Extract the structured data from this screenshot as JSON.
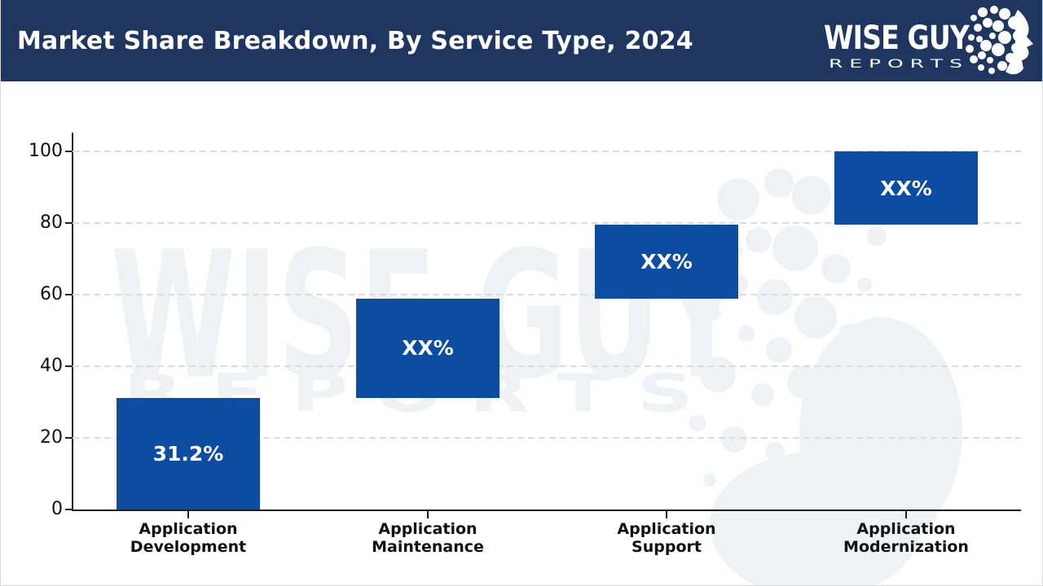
{
  "header": {
    "title": "Market Share Breakdown, By Service Type, 2024",
    "logo": {
      "name": "WISE GUY",
      "sub": "R E P O R T S"
    }
  },
  "watermark": {
    "line1": "WISE GUY",
    "line2": "R E P O R T S"
  },
  "chart_data": {
    "type": "bar",
    "subtype": "floating-waterfall",
    "title": "Market Share Breakdown, By Service Type, 2024",
    "categories": [
      {
        "line1": "Application",
        "line2": "Development"
      },
      {
        "line1": "Application",
        "line2": "Maintenance"
      },
      {
        "line1": "Application",
        "line2": "Support"
      },
      {
        "line1": "Application",
        "line2": "Modernization"
      }
    ],
    "segments": [
      {
        "category": "Application Development",
        "start": 0,
        "end": 31.2,
        "label": "31.2%"
      },
      {
        "category": "Application Maintenance",
        "start": 31.2,
        "end": 59,
        "label": "XX%"
      },
      {
        "category": "Application Support",
        "start": 59,
        "end": 79.6,
        "label": "XX%"
      },
      {
        "category": "Application Modernization",
        "start": 79.6,
        "end": 100,
        "label": "XX%"
      }
    ],
    "xlabel": "",
    "ylabel": "",
    "ylim": [
      0,
      100
    ],
    "yticks": [
      0,
      20,
      40,
      60,
      80,
      100
    ],
    "grid": "horizontal-dashed",
    "legend": "none",
    "colors": {
      "bar": "#0c4da2",
      "bar_label": "#ffffff",
      "axis": "#1f1f1f",
      "tick_label": "#111111",
      "grid": "#dcdcdc",
      "header_bg": "#1f3760",
      "watermark": "#f0f1f4",
      "border": "#d9d9d9"
    }
  }
}
